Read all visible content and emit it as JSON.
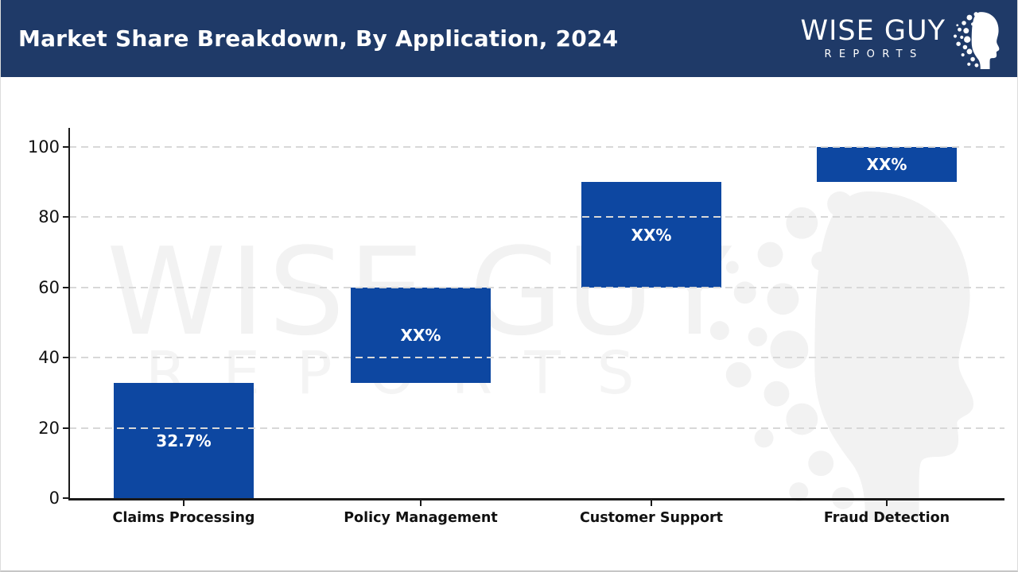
{
  "header": {
    "title": "Market Share Breakdown, By Application, 2024",
    "logo": {
      "line1": "WISE GUY",
      "line2": "REPORTS"
    }
  },
  "watermark": {
    "line1": "WISE GUY",
    "line2": "REPORTS"
  },
  "colors": {
    "header_bg": "#1f3a68",
    "bar": "#0d47a1",
    "bar_label": "#ffffff",
    "gridline": "#d8d8d8",
    "axis": "#1a1a1a",
    "watermark": "#f2f2f2"
  },
  "chart_data": {
    "type": "bar",
    "subtype": "waterfall",
    "title": "Market Share Breakdown, By Application, 2024",
    "xlabel": "",
    "ylabel": "",
    "categories": [
      "Claims Processing",
      "Policy Management",
      "Customer Support",
      "Fraud Detection"
    ],
    "segments": [
      {
        "category": "Claims Processing",
        "start": 0,
        "end": 32.7,
        "label": "32.7%"
      },
      {
        "category": "Policy Management",
        "start": 32.7,
        "end": 60,
        "label": "XX%"
      },
      {
        "category": "Customer Support",
        "start": 60,
        "end": 90,
        "label": "XX%"
      },
      {
        "category": "Fraud Detection",
        "start": 90,
        "end": 100,
        "label": "XX%"
      }
    ],
    "yticks": [
      0,
      20,
      40,
      60,
      80,
      100
    ],
    "ylim": [
      0,
      105
    ],
    "grid": "horizontal dashed, drawn over bars",
    "legend": "none",
    "bar_color": "#0d47a1",
    "bar_label_color": "#ffffff"
  }
}
